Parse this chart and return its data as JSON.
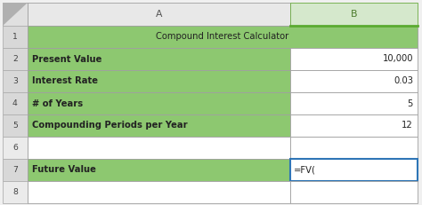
{
  "fig_width": 4.74,
  "fig_height": 2.31,
  "dpi": 100,
  "bg_color": "#f0f0f0",
  "green_bg": "#8dc870",
  "white_bg": "#ffffff",
  "gray_header_bg": "#e0e0e0",
  "row_num_bg": "#ebebeb",
  "border_color": "#a0a0a0",
  "green_border": "#6aaa40",
  "text_color": "#222222",
  "green_rows": [
    0,
    1,
    2,
    3,
    4,
    6
  ],
  "cell_data": [
    [
      "Compound Interest Calculator",
      ""
    ],
    [
      "Present Value",
      "10,000"
    ],
    [
      "Interest Rate",
      "0.03"
    ],
    [
      "# of Years",
      "5"
    ],
    [
      "Compounding Periods per Year",
      "12"
    ],
    [
      "",
      ""
    ],
    [
      "Future Value",
      "=FV("
    ],
    [
      "",
      ""
    ]
  ],
  "row_labels": [
    "1",
    "2",
    "3",
    "4",
    "5",
    "6",
    "7",
    "8"
  ],
  "font_size_main": 7.2,
  "font_size_header": 7.8,
  "font_size_tooltip": 5.2
}
